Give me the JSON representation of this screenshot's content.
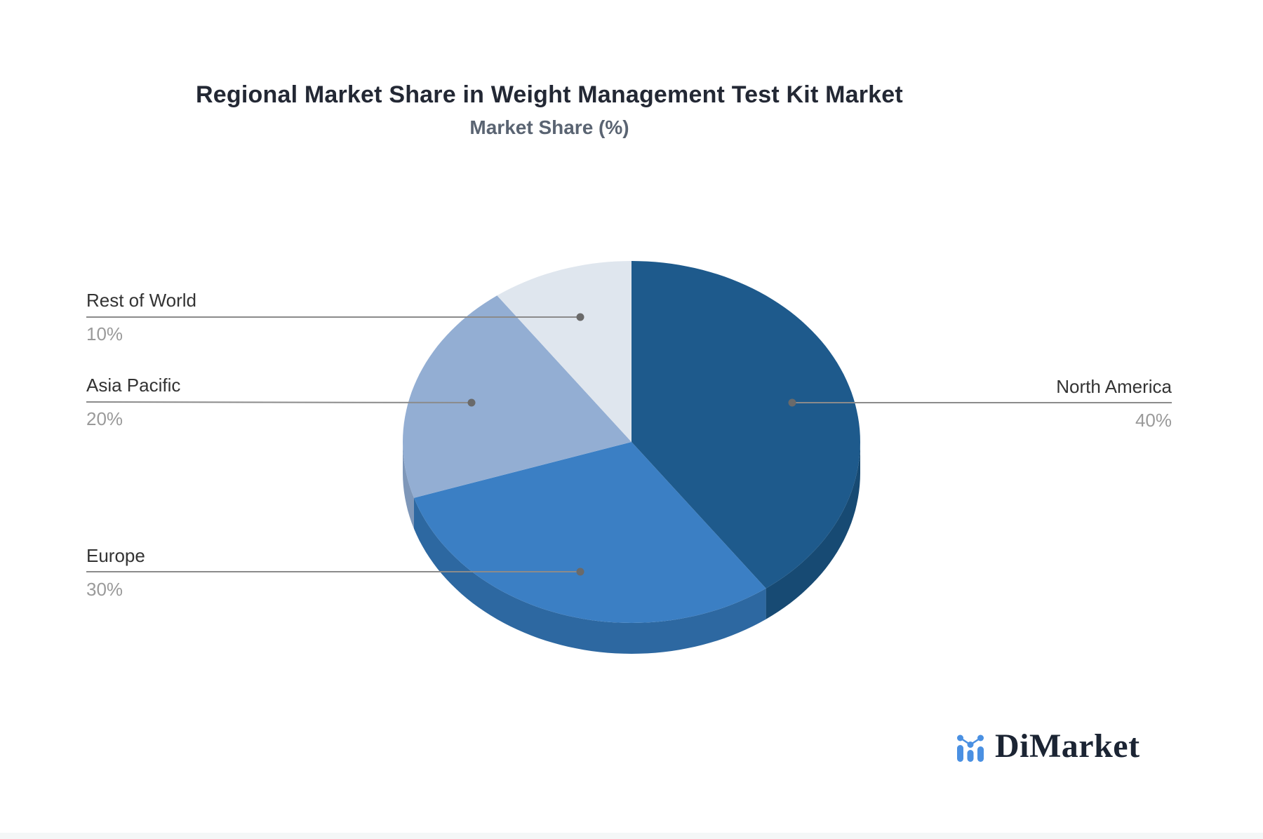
{
  "title": "Regional Market Share in Weight Management Test Kit Market",
  "subtitle": "Market Share (%)",
  "chart_data": {
    "type": "pie",
    "style": "3d",
    "title": "Regional Market Share in Weight Management Test Kit Market",
    "subtitle": "Market Share (%)",
    "unit": "%",
    "start_position": "12-oclock",
    "direction": "clockwise",
    "legend_position": "none",
    "label_style": "callout-leader-lines",
    "slices": [
      {
        "label": "North America",
        "value": 40,
        "pct": "40%",
        "color": "#1E5A8C",
        "side_color": "#174A73"
      },
      {
        "label": "Europe",
        "value": 30,
        "pct": "30%",
        "color": "#3B7FC4",
        "side_color": "#2D68A1"
      },
      {
        "label": "Asia Pacific",
        "value": 20,
        "pct": "20%",
        "color": "#93AED3",
        "side_color": "#7E97B9"
      },
      {
        "label": "Rest of World",
        "value": 10,
        "pct": "10%",
        "color": "#DFE6EE",
        "side_color": "#C6CFDB"
      }
    ]
  },
  "colors": {
    "background": "#FFFFFF",
    "title": "#232834",
    "subtitle": "#5A6472",
    "label": "#333333",
    "value": "#9A9A9A",
    "leader_line": "#8B8B8B",
    "leader_dot": "#6A6A6A",
    "logo_blue": "#4A90E2",
    "logo_text": "#1B2433"
  },
  "branding": {
    "logo_text": "DiMarket",
    "logo_icon": "bar-chart-icon"
  }
}
